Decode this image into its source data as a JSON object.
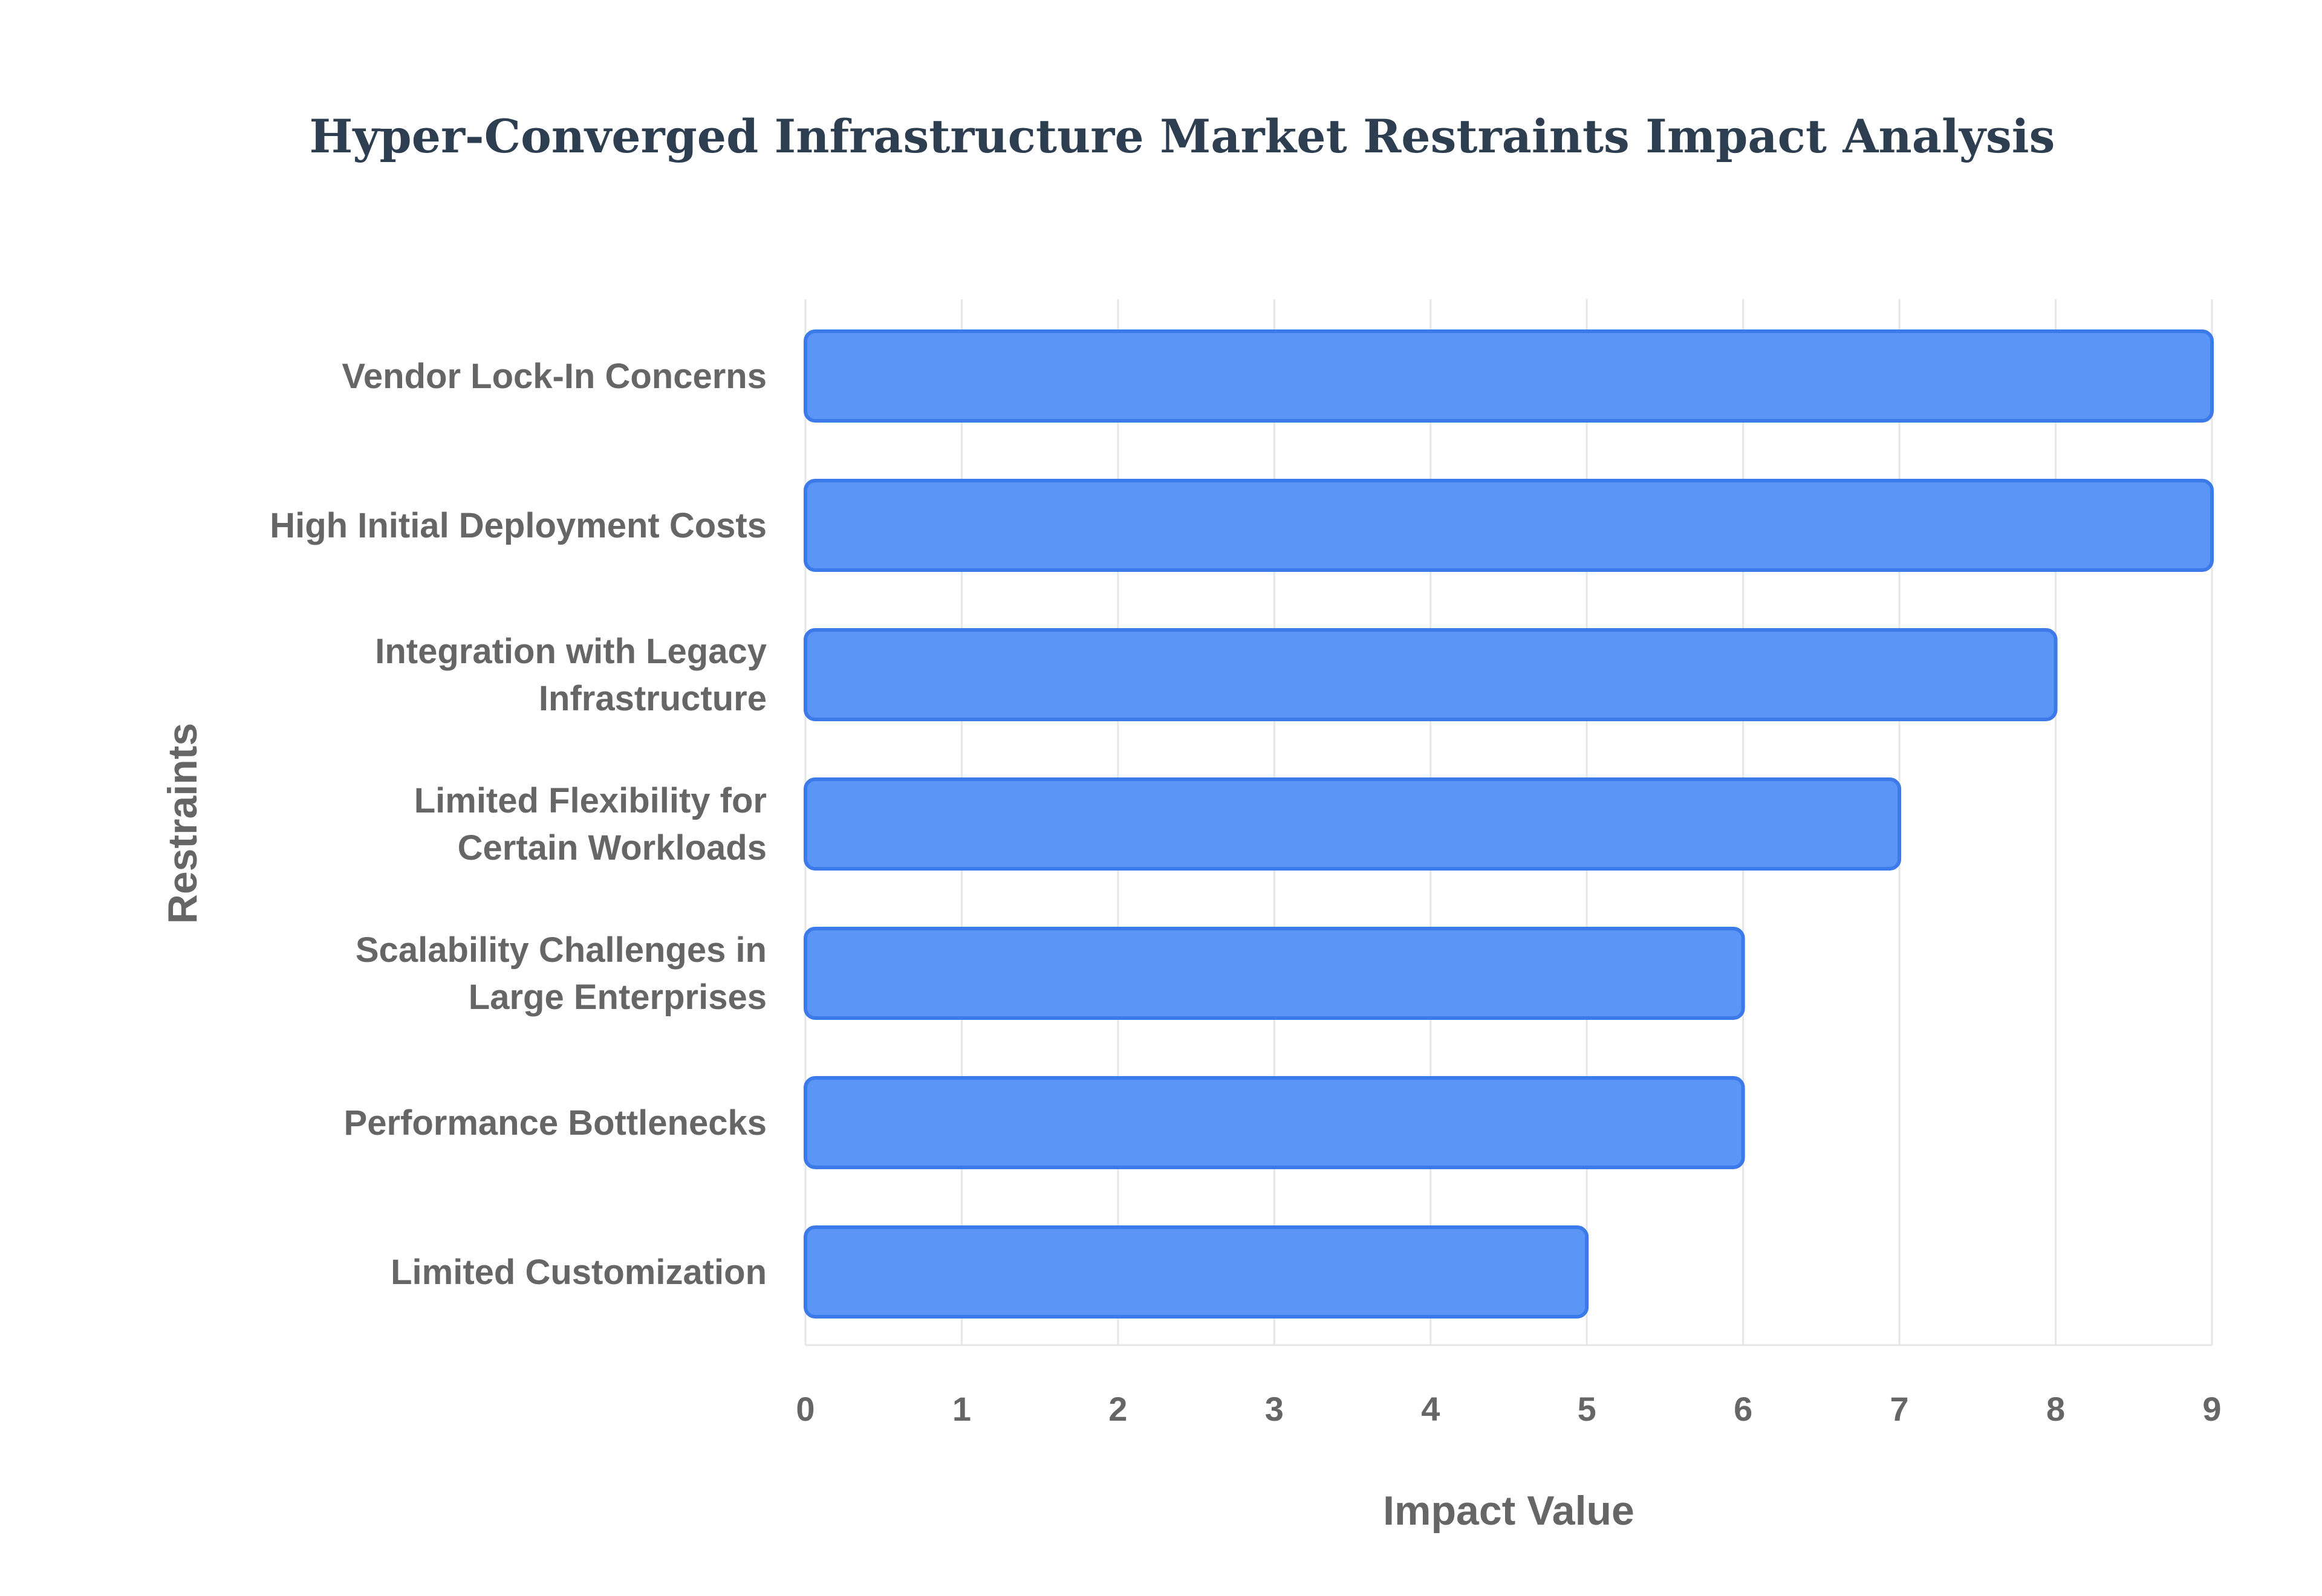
{
  "chart_data": {
    "type": "bar",
    "orientation": "horizontal",
    "title": "Hyper-Converged Infrastructure Market Restraints Impact Analysis",
    "xlabel": "Impact Value",
    "ylabel": "Restraints",
    "categories": [
      [
        "Vendor Lock-In Concerns"
      ],
      [
        "High Initial Deployment Costs"
      ],
      [
        "Integration with Legacy",
        "Infrastructure"
      ],
      [
        "Limited Flexibility for",
        "Certain Workloads"
      ],
      [
        "Scalability Challenges in",
        "Large Enterprises"
      ],
      [
        "Performance Bottlenecks"
      ],
      [
        "Limited Customization"
      ]
    ],
    "values": [
      9,
      9,
      8,
      7,
      6,
      6,
      5
    ],
    "xlim": [
      0,
      9
    ],
    "xticks": [
      "0",
      "1",
      "2",
      "3",
      "4",
      "5",
      "6",
      "7",
      "8",
      "9"
    ],
    "grid": true,
    "bar_fill": "#5b95f5",
    "bar_stroke": "#3b7ae8"
  }
}
